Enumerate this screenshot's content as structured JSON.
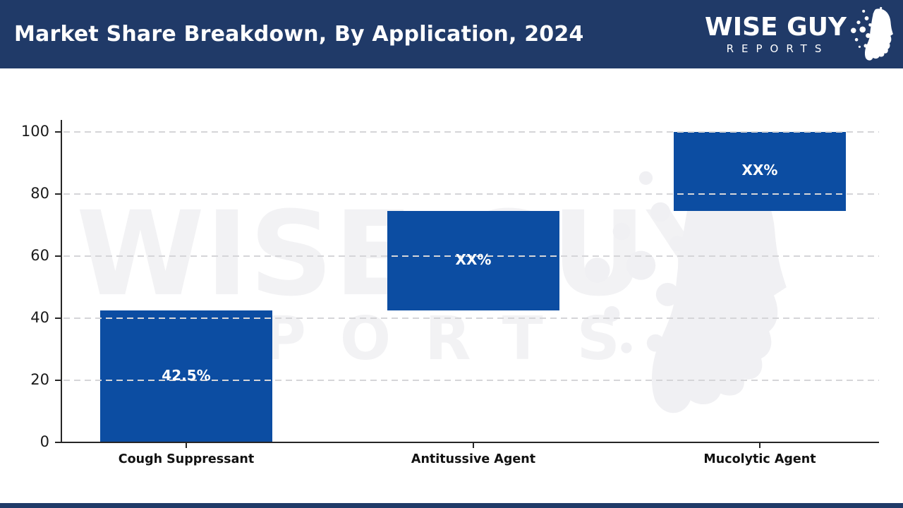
{
  "header": {
    "title": "Market Share Breakdown, By Application, 2024",
    "bg_color": "#203a68",
    "logo": {
      "line1": "WISE GUY",
      "line2": "REPORTS"
    }
  },
  "watermark": {
    "line1": "WISE GUY",
    "line2": "REPORTS"
  },
  "chart_data": {
    "type": "bar",
    "subtype": "waterfall",
    "title": "Market Share Breakdown, By Application, 2024",
    "categories": [
      "Cough Suppressant",
      "Antitussive Agent",
      "Mucolytic Agent"
    ],
    "bars": [
      {
        "category": "Cough Suppressant",
        "start": 0,
        "end": 42.5,
        "label": "42.5%"
      },
      {
        "category": "Antitussive Agent",
        "start": 42.5,
        "end": 74.5,
        "label": "XX%"
      },
      {
        "category": "Mucolytic Agent",
        "start": 74.5,
        "end": 100,
        "label": "XX%"
      }
    ],
    "ylim": [
      0,
      100
    ],
    "yticks": [
      0,
      20,
      40,
      60,
      80,
      100
    ],
    "bar_color": "#0c4da2",
    "grid": "horizontal-dashed",
    "legend": "none"
  }
}
